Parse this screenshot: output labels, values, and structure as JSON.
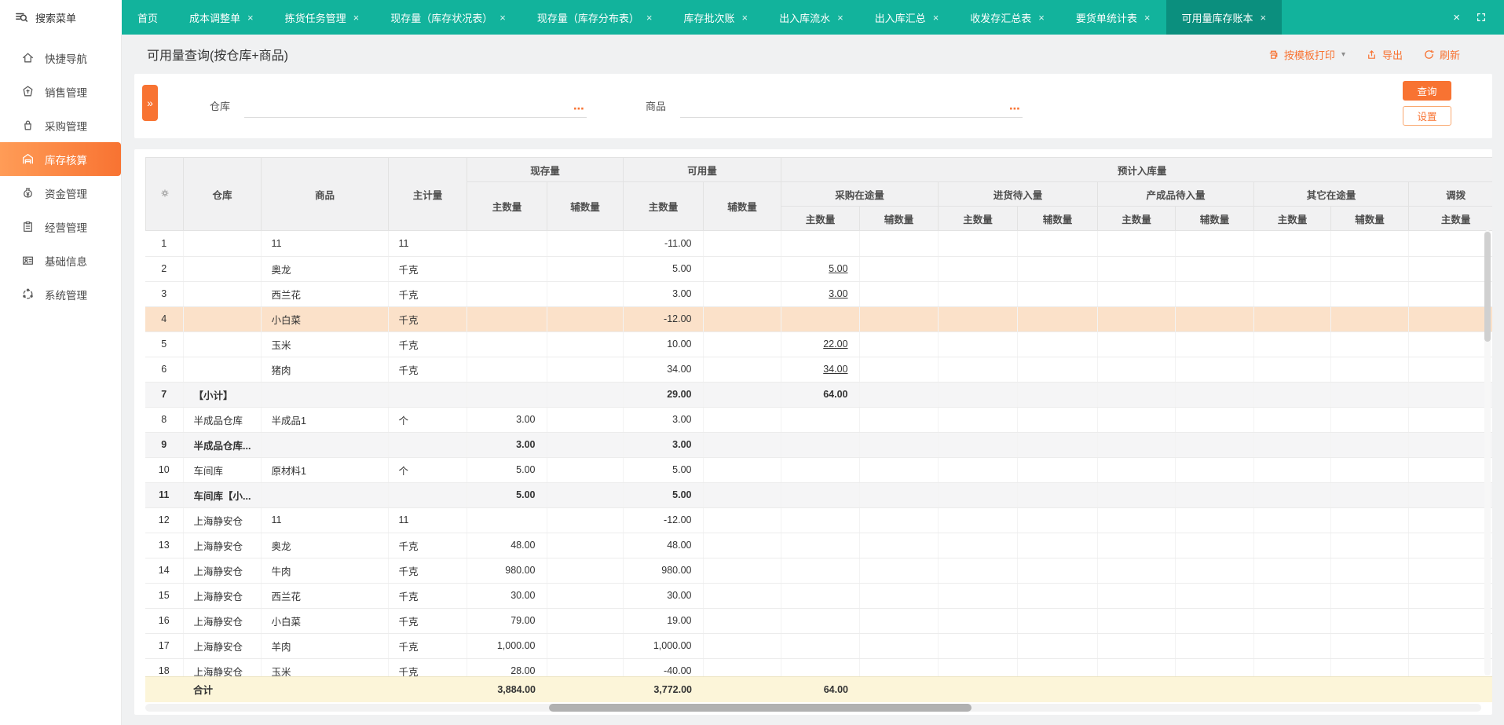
{
  "tabbar": {
    "search_menu": "搜索菜单",
    "tabs": [
      {
        "label": "首页",
        "closable": false,
        "active": false
      },
      {
        "label": "成本调整单",
        "closable": true,
        "active": false
      },
      {
        "label": "拣货任务管理",
        "closable": true,
        "active": false
      },
      {
        "label": "现存量（库存状况表）",
        "closable": true,
        "active": false
      },
      {
        "label": "现存量（库存分布表）",
        "closable": true,
        "active": false
      },
      {
        "label": "库存批次账",
        "closable": true,
        "active": false
      },
      {
        "label": "出入库流水",
        "closable": true,
        "active": false
      },
      {
        "label": "出入库汇总",
        "closable": true,
        "active": false
      },
      {
        "label": "收发存汇总表",
        "closable": true,
        "active": false
      },
      {
        "label": "要货单统计表",
        "closable": true,
        "active": false
      },
      {
        "label": "可用量库存账本",
        "closable": true,
        "active": true
      }
    ]
  },
  "sidebar": {
    "items": [
      {
        "label": "快捷导航",
        "icon": "home-icon",
        "active": false
      },
      {
        "label": "销售管理",
        "icon": "sales-icon",
        "active": false
      },
      {
        "label": "采购管理",
        "icon": "purchase-icon",
        "active": false
      },
      {
        "label": "库存核算",
        "icon": "inventory-icon",
        "active": true
      },
      {
        "label": "资金管理",
        "icon": "funds-icon",
        "active": false
      },
      {
        "label": "经营管理",
        "icon": "operations-icon",
        "active": false
      },
      {
        "label": "基础信息",
        "icon": "basic-info-icon",
        "active": false
      },
      {
        "label": "系统管理",
        "icon": "system-icon",
        "active": false
      }
    ]
  },
  "page": {
    "title": "可用量查询(按仓库+商品)",
    "actions": {
      "print": "按模板打印",
      "export": "导出",
      "refresh": "刷新"
    }
  },
  "filters": {
    "warehouse_label": "仓库",
    "warehouse_value": "",
    "product_label": "商品",
    "product_value": "",
    "ellipsis": "⋯",
    "expand_icon": "»",
    "search_button": "查询",
    "settings_button": "设置"
  },
  "table": {
    "headers": {
      "warehouse": "仓库",
      "product": "商品",
      "unit": "主计量",
      "onhand": "现存量",
      "available": "可用量",
      "expected": "预计入库量",
      "purchase_transit": "采购在途量",
      "incoming_pending": "进货待入量",
      "finished_pending": "产成品待入量",
      "other_transit": "其它在途量",
      "transfer": "调拨",
      "main_qty": "主数量",
      "aux_qty": "辅数量"
    },
    "rows": [
      {
        "no": "1",
        "wh": "",
        "prod": "11",
        "unit": "11",
        "av_m": "-11.00",
        "type": ""
      },
      {
        "no": "2",
        "wh": "",
        "prod": "奥龙",
        "unit": "千克",
        "av_m": "5.00",
        "po_m": "5.00",
        "links": [
          "po_m"
        ],
        "type": ""
      },
      {
        "no": "3",
        "wh": "",
        "prod": "西兰花",
        "unit": "千克",
        "av_m": "3.00",
        "po_m": "3.00",
        "links": [
          "po_m"
        ],
        "type": ""
      },
      {
        "no": "4",
        "wh": "",
        "prod": "小白菜",
        "unit": "千克",
        "av_m": "-12.00",
        "type": "selected"
      },
      {
        "no": "5",
        "wh": "",
        "prod": "玉米",
        "unit": "千克",
        "av_m": "10.00",
        "po_m": "22.00",
        "links": [
          "po_m"
        ],
        "type": ""
      },
      {
        "no": "6",
        "wh": "",
        "prod": "猪肉",
        "unit": "千克",
        "av_m": "34.00",
        "po_m": "34.00",
        "links": [
          "po_m"
        ],
        "type": ""
      },
      {
        "no": "7",
        "wh": "【小计】",
        "av_m": "29.00",
        "po_m": "64.00",
        "type": "subtotal"
      },
      {
        "no": "8",
        "wh": "半成品仓库",
        "prod": "半成品1",
        "unit": "个",
        "oh_m": "3.00",
        "av_m": "3.00",
        "type": ""
      },
      {
        "no": "9",
        "wh": "半成品仓库...",
        "oh_m": "3.00",
        "av_m": "3.00",
        "type": "subtotal"
      },
      {
        "no": "10",
        "wh": "车间库",
        "prod": "原材料1",
        "unit": "个",
        "oh_m": "5.00",
        "av_m": "5.00",
        "type": ""
      },
      {
        "no": "11",
        "wh": "车间库【小...",
        "oh_m": "5.00",
        "av_m": "5.00",
        "type": "subtotal"
      },
      {
        "no": "12",
        "wh": "上海静安仓",
        "prod": "11",
        "unit": "11",
        "av_m": "-12.00",
        "type": ""
      },
      {
        "no": "13",
        "wh": "上海静安仓",
        "prod": "奥龙",
        "unit": "千克",
        "oh_m": "48.00",
        "av_m": "48.00",
        "type": ""
      },
      {
        "no": "14",
        "wh": "上海静安仓",
        "prod": "牛肉",
        "unit": "千克",
        "oh_m": "980.00",
        "av_m": "980.00",
        "type": ""
      },
      {
        "no": "15",
        "wh": "上海静安仓",
        "prod": "西兰花",
        "unit": "千克",
        "oh_m": "30.00",
        "av_m": "30.00",
        "type": ""
      },
      {
        "no": "16",
        "wh": "上海静安仓",
        "prod": "小白菜",
        "unit": "千克",
        "oh_m": "79.00",
        "av_m": "19.00",
        "type": ""
      },
      {
        "no": "17",
        "wh": "上海静安仓",
        "prod": "羊肉",
        "unit": "千克",
        "oh_m": "1,000.00",
        "av_m": "1,000.00",
        "type": ""
      },
      {
        "no": "18",
        "wh": "上海静安仓",
        "prod": "玉米",
        "unit": "千克",
        "oh_m": "28.00",
        "av_m": "-40.00",
        "type": ""
      }
    ],
    "footer": {
      "no": "",
      "wh": "合计",
      "oh_m": "3,884.00",
      "av_m": "3,772.00",
      "po_m": "64.00"
    }
  },
  "theme": {
    "primary_green": "#12b39c",
    "active_tab_green": "#0b8f7e",
    "accent_orange": "#f87332",
    "accent_orange_light": "#ff9c57",
    "negative_red": "#f5222d",
    "selected_row": "#fbe1c9",
    "subtotal_row": "#f5f5f6",
    "footer_row": "#fcf5d9"
  }
}
